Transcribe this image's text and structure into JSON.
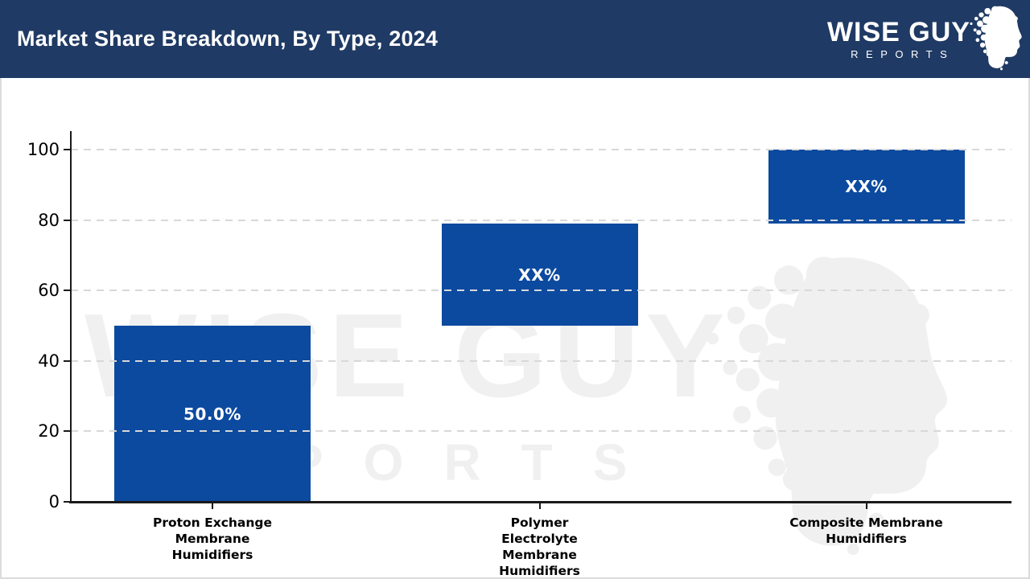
{
  "header": {
    "title": "Market Share Breakdown, By Type, 2024",
    "logo": {
      "line1": "WISE GUY",
      "line2": "REPORTS"
    }
  },
  "watermark": {
    "line1": "WISE GUY",
    "line2": "REPORTS"
  },
  "chart_data": {
    "type": "bar",
    "subtype": "waterfall-stacked-percentage",
    "title": "Market Share Breakdown, By Type, 2024",
    "categories": [
      "Proton Exchange\nMembrane\nHumidifiers",
      "Polymer\nElectrolyte\nMembrane\nHumidifiers",
      "Composite Membrane\nHumidifiers"
    ],
    "bars": [
      {
        "category": "Proton Exchange Membrane Humidifiers",
        "start": 0,
        "end": 50,
        "value": 50,
        "label": "50.0%"
      },
      {
        "category": "Polymer Electrolyte Membrane Humidifiers",
        "start": 50,
        "end": 79,
        "value": 29,
        "label": "XX%"
      },
      {
        "category": "Composite Membrane Humidifiers",
        "start": 79,
        "end": 100,
        "value": 21,
        "label": "XX%"
      }
    ],
    "xlabel": "",
    "ylabel": "",
    "ylim": [
      0,
      105
    ],
    "yticks": [
      0,
      20,
      40,
      60,
      80,
      100
    ],
    "grid": "horizontal-dashed-above-bars",
    "legend": "none",
    "bar_color": "#0b4a9f",
    "bar_label_color": "#ffffff"
  },
  "colors": {
    "header_bg": "#1f3a64",
    "bar": "#0b4a9f",
    "grid": "#d8d8d8",
    "axis": "#1a1a1a",
    "watermark": "#f0f0f1",
    "frame_border": "#dcdcdc"
  }
}
